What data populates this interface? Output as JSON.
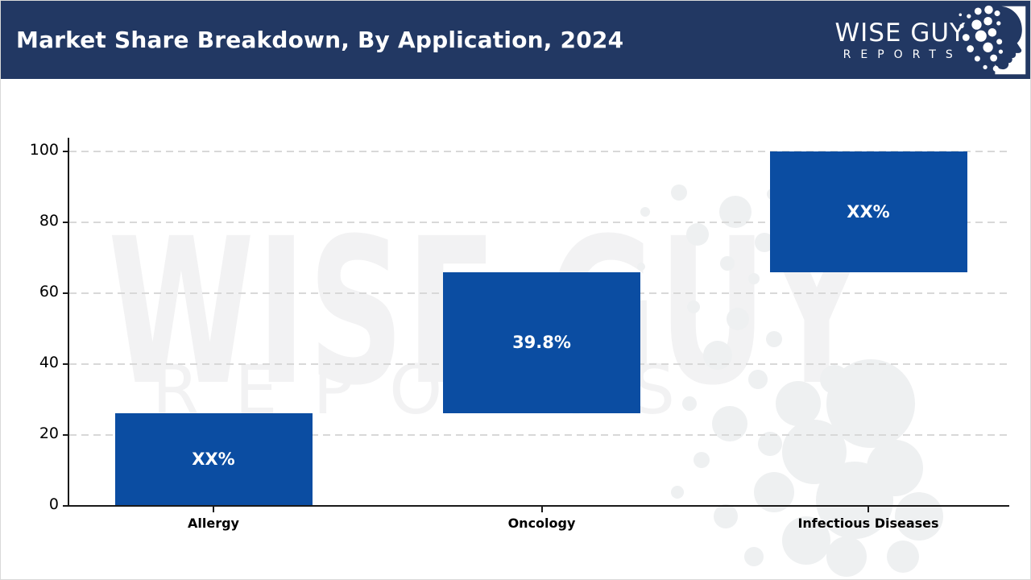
{
  "header": {
    "title": "Market Share Breakdown, By Application, 2024",
    "logo": {
      "line1": "WISE GUY",
      "line2": "REPORTS"
    }
  },
  "watermark": {
    "line1": "WISE GUY",
    "line2": "REPORTS"
  },
  "chart_data": {
    "type": "bar",
    "subtype": "floating-waterfall",
    "title": "Market Share Breakdown, By Application, 2024",
    "categories": [
      "Allergy",
      "Oncology",
      "Infectious Diseases"
    ],
    "bars": [
      {
        "category": "Allergy",
        "start": 0,
        "end": 26.2,
        "label": "XX%"
      },
      {
        "category": "Oncology",
        "start": 26.2,
        "end": 66.0,
        "label": "39.8%"
      },
      {
        "category": "Infectious Diseases",
        "start": 66.0,
        "end": 100.0,
        "label": "XX%"
      }
    ],
    "yticks": [
      0,
      20,
      40,
      60,
      80,
      100
    ],
    "ylim": [
      0,
      104
    ],
    "xlabel": "",
    "ylabel": "",
    "grid": "horizontal-dashed",
    "legend": "none"
  },
  "colors": {
    "header_bg": "#223863",
    "bar": "#0b4da2",
    "bar_label": "#ffffff",
    "grid": "#d8d8d8",
    "axis": "#1a1a1a",
    "watermark": "#f2f2f3",
    "watermark_dot": "#eef0f1"
  }
}
